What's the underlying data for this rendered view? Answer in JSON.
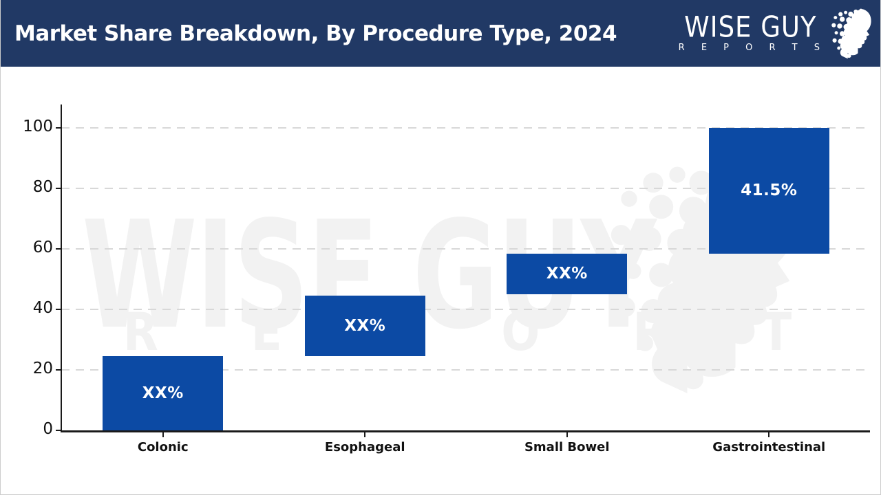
{
  "header": {
    "title": "Market Share Breakdown, By Procedure Type, 2024",
    "logo": {
      "wordmark": "WISE GUY",
      "subtext": "R E P O R T S"
    }
  },
  "watermark": {
    "wordmark": "WISE GUY",
    "subtext": "R E P O R T S"
  },
  "colors": {
    "header_bg": "#213965",
    "bar": "#0C4AA4",
    "bar_label": "#FFFFFF",
    "gridline": "#D8D8D8",
    "axis": "#1A1A1A",
    "watermark": "#F2F2F2"
  },
  "chart_data": {
    "type": "bar",
    "subtype": "floating-waterfall",
    "title": "Market Share Breakdown, By Procedure Type, 2024",
    "categories": [
      "Colonic",
      "Esophageal",
      "Small Bowel",
      "Gastrointestinal"
    ],
    "segments": [
      {
        "category": "Colonic",
        "start": 0,
        "end": 24.5,
        "label": "XX%"
      },
      {
        "category": "Esophageal",
        "start": 24.5,
        "end": 44.5,
        "label": "XX%"
      },
      {
        "category": "Small Bowel",
        "start": 45,
        "end": 58.5,
        "label": "XX%"
      },
      {
        "category": "Gastrointestinal",
        "start": 58.5,
        "end": 100,
        "label": "41.5%"
      }
    ],
    "xlabel": "",
    "ylabel": "",
    "ylim": [
      0,
      108
    ],
    "yticks": [
      0,
      20,
      40,
      60,
      80,
      100
    ],
    "grid": "horizontal-dashed",
    "legend": "none",
    "bar_color": "#0C4AA4",
    "bar_label_color": "#FFFFFF"
  }
}
